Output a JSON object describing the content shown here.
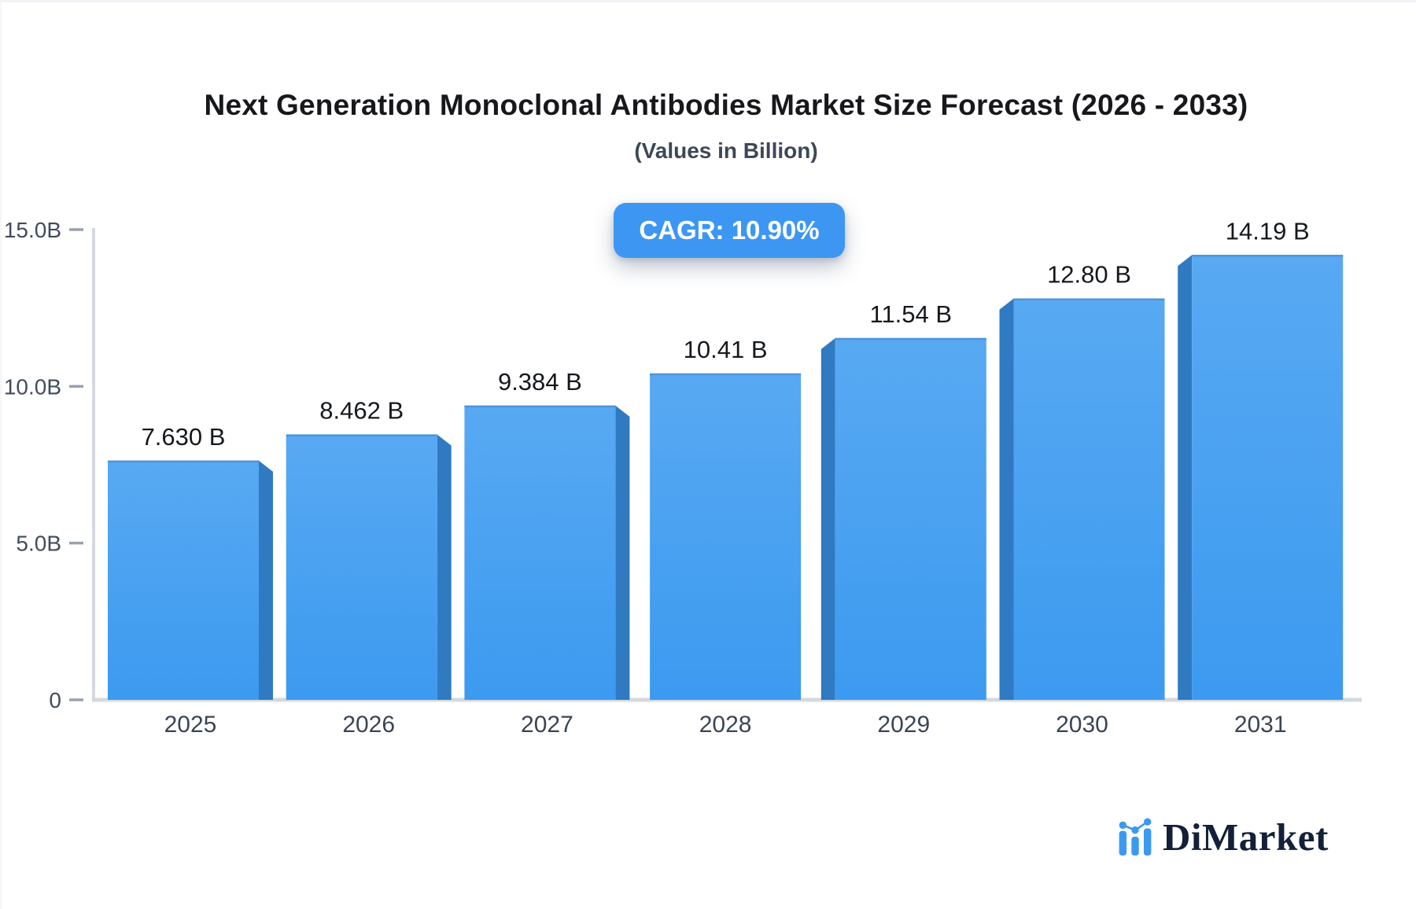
{
  "page": {
    "background": "#ffffff"
  },
  "header": {
    "title": "Next Generation Monoclonal Antibodies Market Size Forecast (2026 - 2033)",
    "subtitle": "(Values in Billion)"
  },
  "badge": {
    "label": "CAGR: 10.90%",
    "bg_color": "#3d97f2",
    "text_color": "#ffffff"
  },
  "chart_data": {
    "type": "bar",
    "title": "Next Generation Monoclonal Antibodies Market Size Forecast (2026 - 2033)",
    "subtitle": "(Values in Billion)",
    "xlabel": "",
    "ylabel": "",
    "categories": [
      "2025",
      "2026",
      "2027",
      "2028",
      "2029",
      "2030",
      "2031"
    ],
    "values": [
      7.63,
      8.462,
      9.384,
      10.41,
      11.54,
      12.8,
      14.19
    ],
    "value_labels": [
      "7.630 B",
      "8.462 B",
      "9.384 B",
      "10.41 B",
      "11.54 B",
      "12.80 B",
      "14.19 B"
    ],
    "ylim": [
      0,
      15
    ],
    "yticks": [
      {
        "label": "15.0B",
        "value": 15
      },
      {
        "label": "10.0B",
        "value": 10
      },
      {
        "label": "5.0B",
        "value": 5
      },
      {
        "label": "0",
        "value": 0
      }
    ],
    "grid": false,
    "legend": null,
    "bar_colors": {
      "face_top": "#58a9f2",
      "face_bottom": "#3c9af0",
      "side": "#2f7ac1",
      "edge": "#4e94dd"
    },
    "axis_color": "#d5d9df",
    "tick_color": "#98a1ae",
    "tick_label_color": "#414c5c",
    "category_label_color": "#3a4554",
    "value_label_color": "#15181d"
  },
  "footer": {
    "logo_text": "DiMarket",
    "logo_color": "#132039",
    "logo_icon": "bar-chart-with-trendline-icon",
    "logo_icon_color": "#3b99f0"
  }
}
